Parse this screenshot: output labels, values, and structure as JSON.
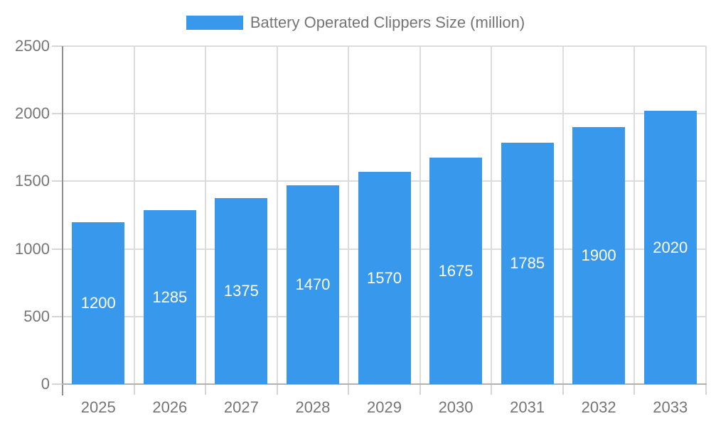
{
  "legend": {
    "label": "Battery Operated Clippers Size (million)"
  },
  "chart_data": {
    "type": "bar",
    "title": "Battery Operated Clippers Size (million)",
    "categories": [
      "2025",
      "2026",
      "2027",
      "2028",
      "2029",
      "2030",
      "2031",
      "2032",
      "2033"
    ],
    "values": [
      1200,
      1285,
      1375,
      1470,
      1570,
      1675,
      1785,
      1900,
      2020
    ],
    "series": [
      {
        "name": "Battery Operated Clippers Size (million)",
        "values": [
          1200,
          1285,
          1375,
          1470,
          1570,
          1675,
          1785,
          1900,
          2020
        ]
      }
    ],
    "xlabel": "",
    "ylabel": "",
    "ylim": [
      0,
      2500
    ],
    "yticks": [
      0,
      500,
      1000,
      1500,
      2000,
      2500
    ],
    "grid": true,
    "legend_position": "top-center",
    "value_labels": "inside-bar-center",
    "colors": {
      "bar": "#3899ec",
      "bar_label": "#ffffff",
      "axis_text": "#757575",
      "legend_text": "#757575"
    }
  }
}
